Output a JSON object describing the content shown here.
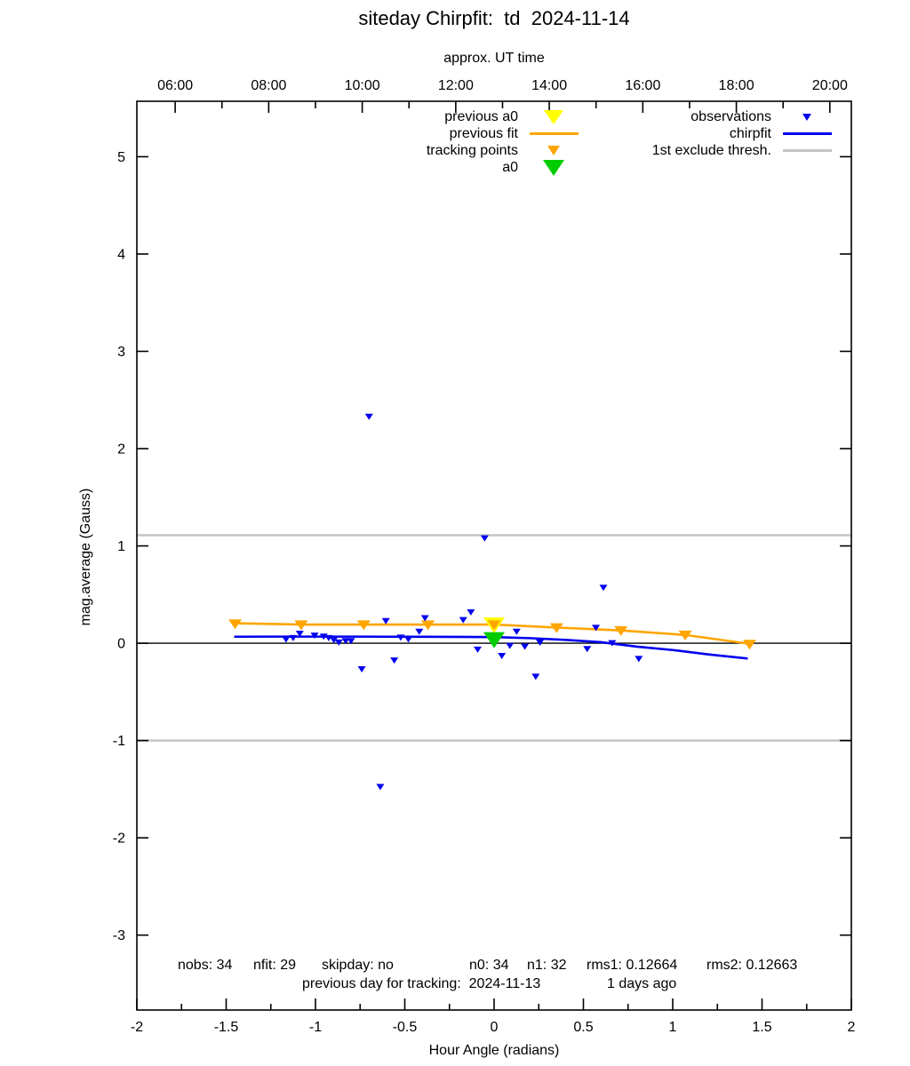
{
  "chart": {
    "title": "siteday Chirpfit:  td  2024-11-14",
    "x2label": "approx. UT time",
    "xlabel": "Hour Angle (radians)",
    "ylabel": "mag.average (Gauss)"
  },
  "legend": {
    "left": [
      {
        "label": "previous a0",
        "marker": "triangle-down-yellow-large"
      },
      {
        "label": "previous fit",
        "marker": "line-orange"
      },
      {
        "label": "tracking points",
        "marker": "triangle-down-orange-small"
      },
      {
        "label": "a0",
        "marker": "triangle-down-green-large"
      }
    ],
    "right": [
      {
        "label": "observations",
        "marker": "triangle-down-blue-small"
      },
      {
        "label": "chirpfit",
        "marker": "line-blue"
      },
      {
        "label": "1st exclude thresh.",
        "marker": "line-gray"
      }
    ]
  },
  "stats": {
    "nobs": 34,
    "nfit": 29,
    "skipday": "no",
    "n0": 34,
    "n1": 32,
    "rms1": 0.12664,
    "rms2": 0.12663,
    "previous_day_for_tracking": "2024-11-13",
    "line1_items": [
      "nobs: 34",
      "nfit: 29",
      "skipday: no",
      "n0: 34",
      "n1: 32",
      "rms1: 0.12664",
      "rms2: 0.12663"
    ],
    "line2_left": "previous day for tracking:  2024-11-13",
    "line2_right": "1 days ago"
  },
  "chart_data": {
    "type": "scatter",
    "title": "siteday Chirpfit:  td  2024-11-14",
    "xlabel": "Hour Angle (radians)",
    "ylabel": "mag.average (Gauss)",
    "x2label": "approx. UT time",
    "xlim": [
      -2,
      2
    ],
    "ylim": [
      -3.77,
      5.57
    ],
    "grid": false,
    "legend_position": "top-inside",
    "colors": {
      "observations": "#0000EE",
      "chirpfit": "#0000EE",
      "previous_fit": "#FFA500",
      "tracking": "#FFA500",
      "previous_a0": "#FFFF00",
      "a0": "#00CC00",
      "threshold": "#C4C4C4",
      "axis": "#000000"
    },
    "x_ticks": {
      "values": [
        -2,
        -1.5,
        -1,
        -0.5,
        0,
        0.5,
        1,
        1.5,
        2
      ],
      "labels": [
        "-2",
        "-1.5",
        "-1",
        "-0.5",
        "0",
        "0.5",
        "1",
        "1.5",
        "2"
      ],
      "minor_step": 0.25
    },
    "y_ticks": {
      "values": [
        -3,
        -2,
        -1,
        0,
        1,
        2,
        3,
        4,
        5
      ],
      "labels": [
        "-3",
        "-2",
        "-1",
        "0",
        "1",
        "2",
        "3",
        "4",
        "5"
      ]
    },
    "x2_ticks": {
      "major": [
        {
          "hour": 6,
          "label": "06:00"
        },
        {
          "hour": 8,
          "label": "08:00"
        },
        {
          "hour": 10,
          "label": "10:00"
        },
        {
          "hour": 12,
          "label": "12:00"
        },
        {
          "hour": 14,
          "label": "14:00"
        },
        {
          "hour": 16,
          "label": "16:00"
        },
        {
          "hour": 18,
          "label": "18:00"
        },
        {
          "hour": 20,
          "label": "20:00"
        }
      ],
      "minor_hours": [
        7,
        9,
        11,
        13,
        15,
        17,
        19
      ],
      "ut_at_hour_angle_zero": 12.82,
      "rad_per_hour": 0.261799
    },
    "zero_line": 0,
    "series": [
      {
        "name": "observations",
        "type": "scatter",
        "marker": "triangle-down",
        "size": "small",
        "color_key": "observations",
        "points": [
          [
            -1.165,
            0.04
          ],
          [
            -1.125,
            0.055
          ],
          [
            -1.088,
            0.1
          ],
          [
            -1.005,
            0.08
          ],
          [
            -0.954,
            0.07
          ],
          [
            -0.926,
            0.055
          ],
          [
            -0.897,
            0.033
          ],
          [
            -0.869,
            0.01
          ],
          [
            -0.831,
            0.024
          ],
          [
            -0.801,
            0.024
          ],
          [
            -0.741,
            -0.265
          ],
          [
            -0.7,
            2.33
          ],
          [
            -0.637,
            -1.475
          ],
          [
            -0.606,
            0.23
          ],
          [
            -0.559,
            -0.175
          ],
          [
            -0.523,
            0.06
          ],
          [
            -0.48,
            0.042
          ],
          [
            -0.419,
            0.12
          ],
          [
            -0.387,
            0.26
          ],
          [
            -0.173,
            0.24
          ],
          [
            -0.13,
            0.32
          ],
          [
            -0.092,
            -0.064
          ],
          [
            -0.053,
            1.08
          ],
          [
            0.043,
            -0.128
          ],
          [
            0.088,
            -0.025
          ],
          [
            0.126,
            0.12
          ],
          [
            0.172,
            -0.034
          ],
          [
            0.233,
            -0.342
          ],
          [
            0.257,
            0.009
          ],
          [
            0.521,
            -0.058
          ],
          [
            0.57,
            0.16
          ],
          [
            0.612,
            0.572
          ],
          [
            0.661,
            0.003
          ],
          [
            0.81,
            -0.159
          ]
        ]
      },
      {
        "name": "chirpfit",
        "type": "line",
        "color_key": "chirpfit",
        "points": [
          [
            -1.455,
            0.067
          ],
          [
            -1.2,
            0.068
          ],
          [
            -1.0,
            0.068
          ],
          [
            -0.8,
            0.068
          ],
          [
            -0.6,
            0.067
          ],
          [
            -0.4,
            0.066
          ],
          [
            -0.2,
            0.065
          ],
          [
            0.0,
            0.063
          ],
          [
            0.2,
            0.052
          ],
          [
            0.4,
            0.034
          ],
          [
            0.6,
            0.01
          ],
          [
            0.8,
            -0.035
          ],
          [
            1.0,
            -0.07
          ],
          [
            1.2,
            -0.115
          ],
          [
            1.42,
            -0.157
          ]
        ]
      },
      {
        "name": "previous fit",
        "type": "line",
        "color_key": "previous_fit",
        "points": [
          [
            -1.455,
            0.206
          ],
          [
            -1.2,
            0.196
          ],
          [
            -1.08,
            0.192
          ],
          [
            -0.73,
            0.192
          ],
          [
            -0.37,
            0.192
          ],
          [
            0.0,
            0.192
          ],
          [
            0.35,
            0.161
          ],
          [
            0.71,
            0.131
          ],
          [
            1.07,
            0.085
          ],
          [
            1.43,
            -0.006
          ]
        ]
      },
      {
        "name": "tracking points",
        "type": "scatter",
        "marker": "triangle-down",
        "size": "medium",
        "color_key": "tracking",
        "points": [
          [
            -1.45,
            0.2
          ],
          [
            -1.08,
            0.19
          ],
          [
            -0.73,
            0.19
          ],
          [
            -0.37,
            0.19
          ],
          [
            0.0,
            0.19
          ],
          [
            0.35,
            0.16
          ],
          [
            0.71,
            0.13
          ],
          [
            1.07,
            0.085
          ],
          [
            1.43,
            -0.01
          ]
        ]
      },
      {
        "name": "previous a0",
        "type": "scatter",
        "marker": "triangle-down",
        "size": "large",
        "color_key": "previous_a0",
        "points": [
          [
            0.0,
            0.19
          ]
        ]
      },
      {
        "name": "a0",
        "type": "scatter",
        "marker": "triangle-down",
        "size": "large",
        "color_key": "a0",
        "points": [
          [
            0.0,
            0.04
          ]
        ]
      },
      {
        "name": "1st exclude thresh.",
        "type": "hline",
        "color_key": "threshold",
        "values": [
          1.11,
          -1.0
        ]
      }
    ]
  }
}
